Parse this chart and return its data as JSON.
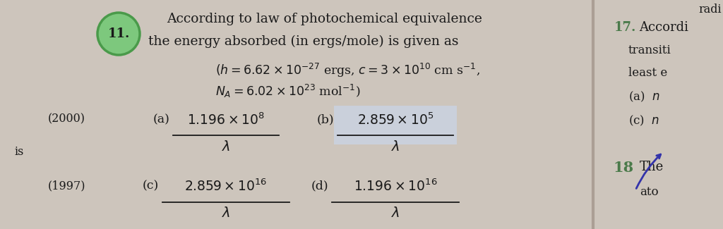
{
  "bg_color": "#cdc5bc",
  "text_color": "#1a1a1a",
  "circle_color": "#7dc87d",
  "circle_edge_color": "#4a9a4a",
  "question_number": "11.",
  "title_line1": "According to law of photochemical equivalence",
  "title_line2": "the energy absorbed (in ergs/mole) is given as",
  "params_line1": "$(h = 6.62 \\times 10^{-27}$ ergs, $c = 3 \\times 10^{10}$ cm s$^{-1}$,",
  "params_line2": "$N_A = 6.02 \\times 10^{23}$ mol$^{-1}$)",
  "year1": "(2000)",
  "year2": "(1997)",
  "opt_a_label": "(a)",
  "opt_a_num": "$1.196\\times10^{8}$",
  "opt_b_label": "(b)",
  "opt_b_num": "$2.859\\times10^{5}$",
  "opt_c_label": "(c)",
  "opt_c_num": "$2.859\\times10^{16}$",
  "opt_d_label": "(d)",
  "opt_d_num": "$1.196\\times10^{16}$",
  "lambda_sym": "$\\lambda$",
  "right_radi": "radi",
  "right_17": "17.",
  "right_accordi": "Accordi",
  "right_transiti": "transiti",
  "right_least": "least e",
  "right_a_n": "(a)  $n$",
  "right_c_n": "(c)  $n$",
  "right_18": "18",
  "right_the": "The",
  "right_ato": "ato",
  "left_is": "is",
  "highlight_color": "#c8d8f0",
  "green_color": "#4a7a4a",
  "arrow_color": "#3333aa"
}
